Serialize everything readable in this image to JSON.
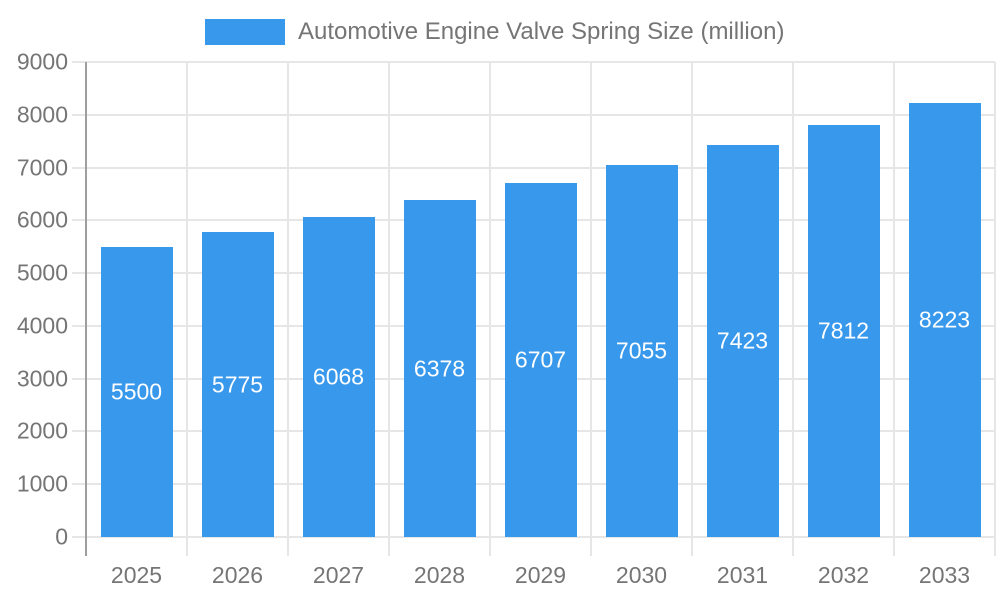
{
  "legend": {
    "label": "Automotive Engine Valve Spring Size (million)",
    "swatch_color": "#3898ec"
  },
  "chart_data": {
    "type": "bar",
    "title": "Automotive Engine Valve Spring Size (million)",
    "categories": [
      "2025",
      "2026",
      "2027",
      "2028",
      "2029",
      "2030",
      "2031",
      "2032",
      "2033"
    ],
    "series": [
      {
        "name": "Automotive Engine Valve Spring Size (million)",
        "values": [
          5500,
          5775,
          6068,
          6378,
          6707,
          7055,
          7423,
          7812,
          8223
        ]
      }
    ],
    "value_labels_shown": true,
    "xlabel": "",
    "ylabel": "",
    "ylim": [
      0,
      9000
    ],
    "y_ticks": [
      0,
      1000,
      2000,
      3000,
      4000,
      5000,
      6000,
      7000,
      8000,
      9000
    ],
    "grid": true,
    "legend_position": "top",
    "colors": {
      "bar": "#3898ec",
      "value_label": "#ffffff",
      "axis_text": "#757575",
      "gridline": "#e6e6e6",
      "axis_line": "#9e9e9e",
      "background": "#ffffff"
    }
  }
}
